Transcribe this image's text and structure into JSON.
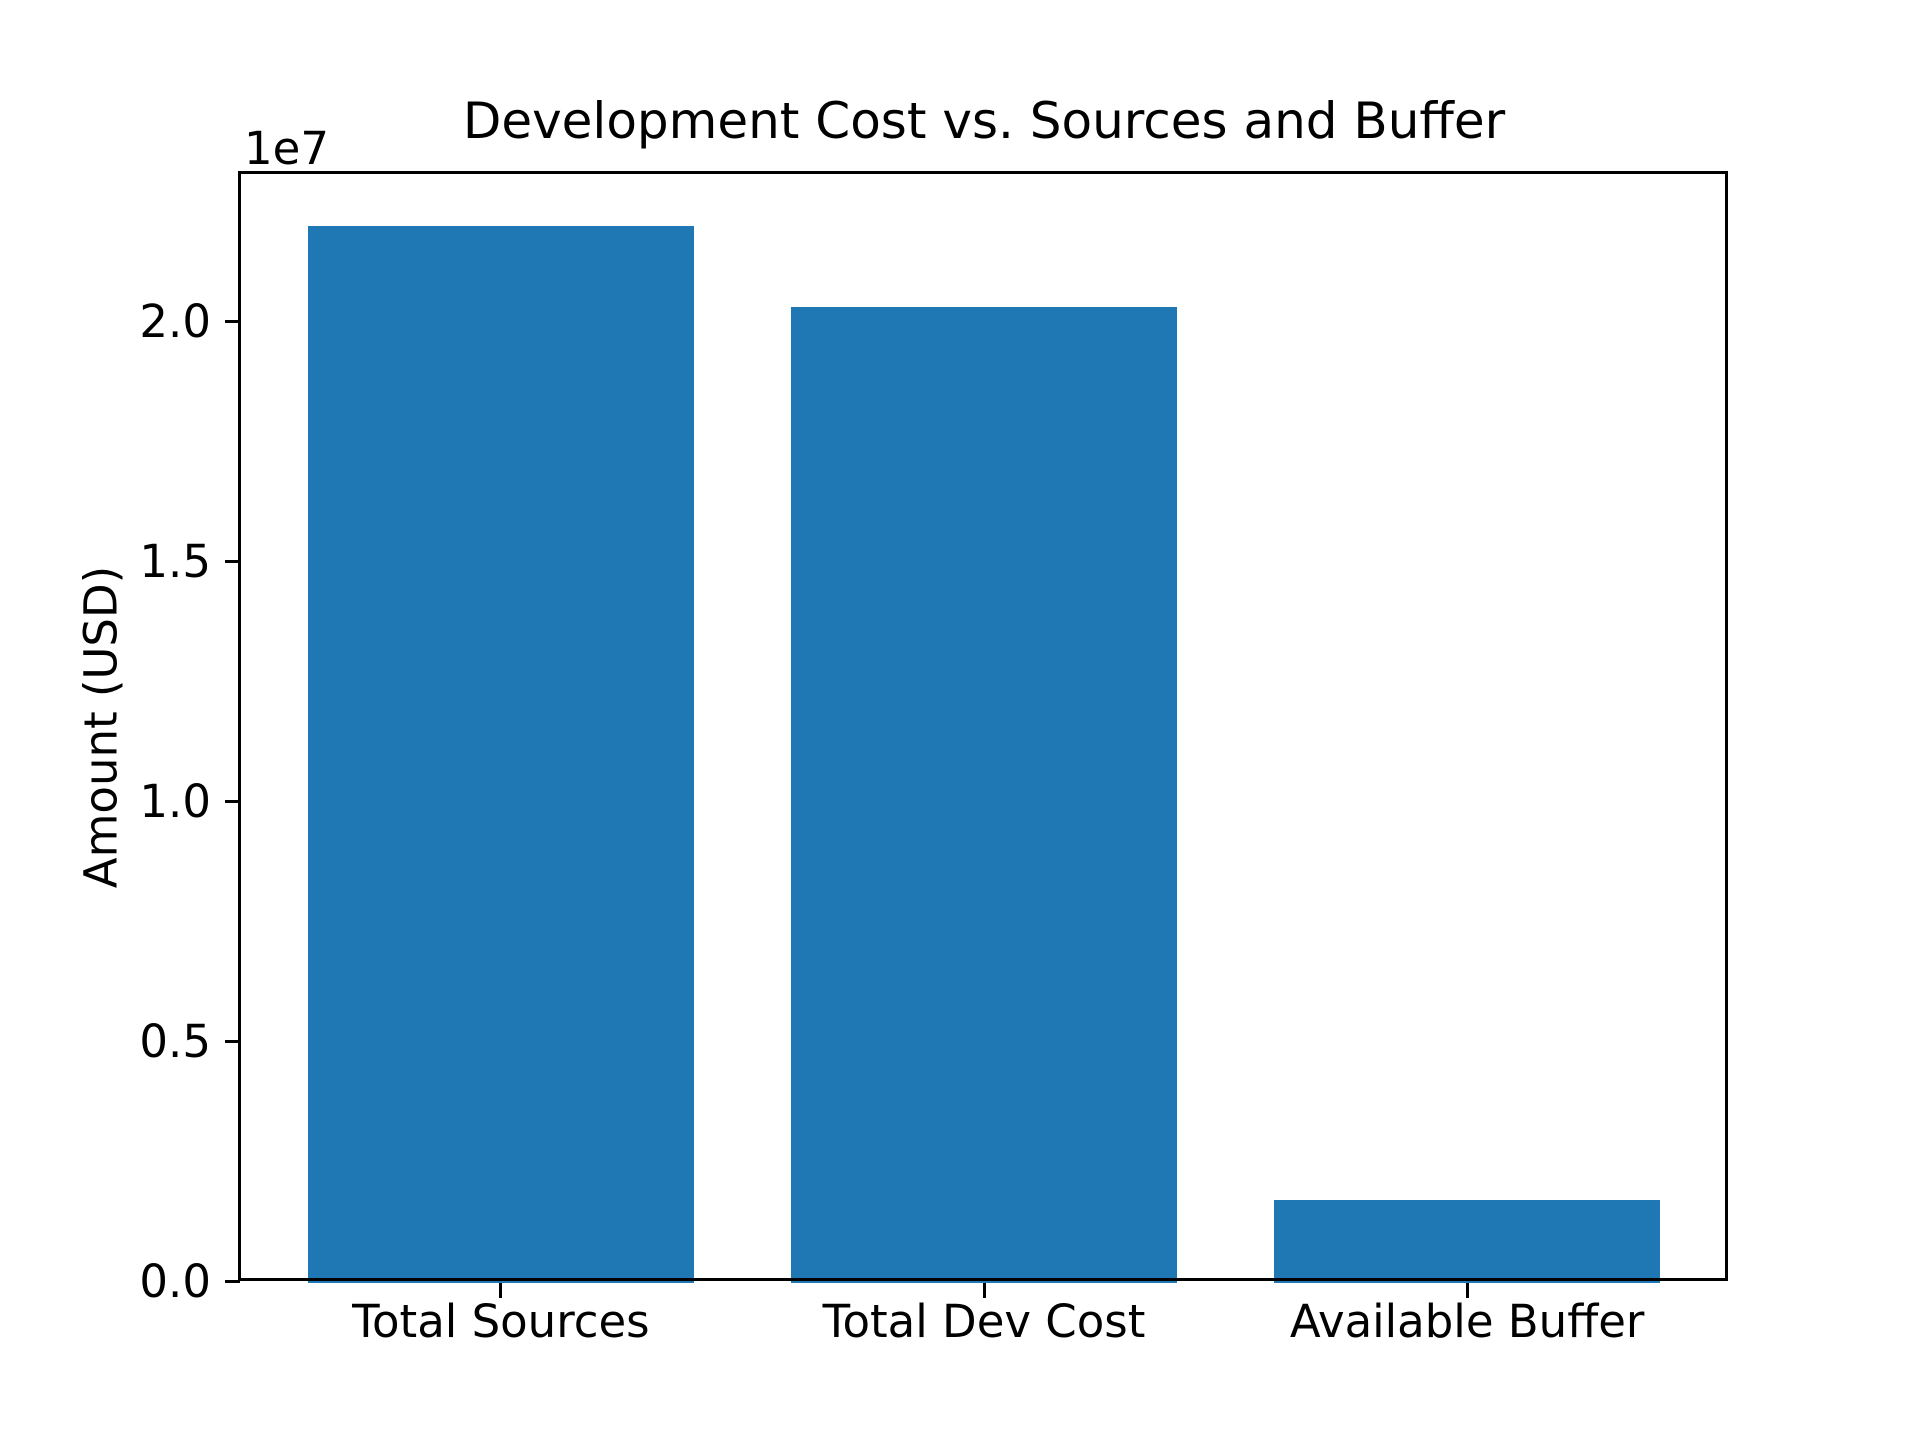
{
  "chart_data": {
    "type": "bar",
    "title": "Development Cost vs. Sources and Buffer",
    "ylabel": "Amount (USD)",
    "xlabel": "",
    "offset_text": "1e7",
    "categories": [
      "Total Sources",
      "Total Dev Cost",
      "Available Buffer"
    ],
    "values": [
      22000000,
      20300000,
      1700000
    ],
    "yticks": [
      0,
      5000000,
      10000000,
      15000000,
      20000000
    ],
    "ytick_labels": [
      "0.0",
      "0.5",
      "1.0",
      "1.5",
      "2.0"
    ],
    "ylim": [
      0,
      23100000
    ],
    "bar_color": "#1f77b4",
    "text_color": "#000000",
    "grid": false,
    "legend": null
  }
}
